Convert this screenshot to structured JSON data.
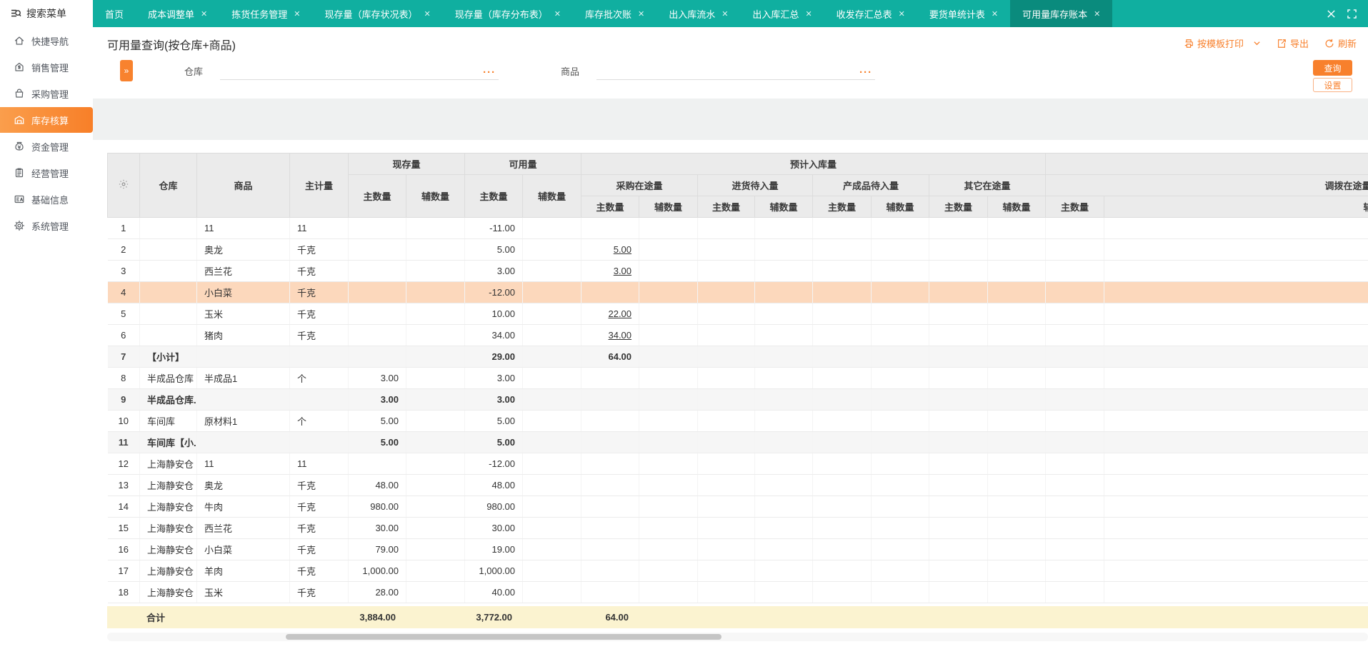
{
  "topbar": {
    "search_menu": "搜索菜单",
    "tabs": [
      {
        "label": "首页",
        "closable": false,
        "active": false
      },
      {
        "label": "成本调整单",
        "closable": true,
        "active": false
      },
      {
        "label": "拣货任务管理",
        "closable": true,
        "active": false
      },
      {
        "label": "现存量（库存状况表）",
        "closable": true,
        "active": false
      },
      {
        "label": "现存量（库存分布表）",
        "closable": true,
        "active": false
      },
      {
        "label": "库存批次账",
        "closable": true,
        "active": false
      },
      {
        "label": "出入库流水",
        "closable": true,
        "active": false
      },
      {
        "label": "出入库汇总",
        "closable": true,
        "active": false
      },
      {
        "label": "收发存汇总表",
        "closable": true,
        "active": false
      },
      {
        "label": "要货单统计表",
        "closable": true,
        "active": false
      },
      {
        "label": "可用量库存账本",
        "closable": true,
        "active": true
      }
    ]
  },
  "sidebar": {
    "items": [
      {
        "label": "快捷导航",
        "icon": "home-icon",
        "active": false
      },
      {
        "label": "销售管理",
        "icon": "sale-icon",
        "active": false
      },
      {
        "label": "采购管理",
        "icon": "purchase-bag-icon",
        "active": false
      },
      {
        "label": "库存核算",
        "icon": "warehouse-icon",
        "active": true
      },
      {
        "label": "资金管理",
        "icon": "money-bag-icon",
        "active": false
      },
      {
        "label": "经营管理",
        "icon": "clipboard-icon",
        "active": false
      },
      {
        "label": "基础信息",
        "icon": "id-card-icon",
        "active": false
      },
      {
        "label": "系统管理",
        "icon": "system-gear-icon",
        "active": false
      }
    ]
  },
  "page": {
    "title": "可用量查询(按仓库+商品)"
  },
  "toolbar": {
    "print": "按模板打印",
    "export": "导出",
    "refresh": "刷新"
  },
  "filters": {
    "warehouse_label": "仓库",
    "product_label": "商品",
    "warehouse_value": "",
    "product_value": "",
    "ellipsis": "···",
    "query": "查询",
    "settings": "设置"
  },
  "table": {
    "headers": {
      "warehouse": "仓库",
      "product": "商品",
      "unit": "主计量",
      "onhand": "现存量",
      "available": "可用量",
      "expected": "预计入库量",
      "purchase_transit": "采购在途量",
      "incoming_pending": "进货待入量",
      "finished_pending": "产成品待入量",
      "other_transit": "其它在途量",
      "transfer_transit": "调拨在途量",
      "main_qty": "主数量",
      "aux_qty": "辅数量"
    },
    "rows": [
      {
        "no": "1",
        "warehouse": "",
        "product": "11",
        "unit": "11",
        "onhand": "",
        "avail": "-11.00",
        "avail_neg": true,
        "purchase": "",
        "purchase_link": false,
        "style": "normal"
      },
      {
        "no": "2",
        "warehouse": "",
        "product": "奥龙",
        "unit": "千克",
        "onhand": "",
        "avail": "5.00",
        "avail_neg": false,
        "purchase": "5.00",
        "purchase_link": true,
        "style": "normal"
      },
      {
        "no": "3",
        "warehouse": "",
        "product": "西兰花",
        "unit": "千克",
        "onhand": "",
        "avail": "3.00",
        "avail_neg": false,
        "purchase": "3.00",
        "purchase_link": true,
        "style": "normal"
      },
      {
        "no": "4",
        "warehouse": "",
        "product": "小白菜",
        "unit": "千克",
        "onhand": "",
        "avail": "-12.00",
        "avail_neg": true,
        "purchase": "",
        "purchase_link": false,
        "style": "highlight"
      },
      {
        "no": "5",
        "warehouse": "",
        "product": "玉米",
        "unit": "千克",
        "onhand": "",
        "avail": "10.00",
        "avail_neg": false,
        "purchase": "22.00",
        "purchase_link": true,
        "style": "normal"
      },
      {
        "no": "6",
        "warehouse": "",
        "product": "猪肉",
        "unit": "千克",
        "onhand": "",
        "avail": "34.00",
        "avail_neg": false,
        "purchase": "34.00",
        "purchase_link": true,
        "style": "normal"
      },
      {
        "no": "7",
        "warehouse": "【小计】",
        "product": "",
        "unit": "",
        "onhand": "",
        "avail": "29.00",
        "avail_neg": false,
        "purchase": "64.00",
        "purchase_link": false,
        "style": "subtotal"
      },
      {
        "no": "8",
        "warehouse": "半成品仓库",
        "product": "半成品1",
        "unit": "个",
        "onhand": "3.00",
        "avail": "3.00",
        "avail_neg": false,
        "purchase": "",
        "purchase_link": false,
        "style": "normal"
      },
      {
        "no": "9",
        "warehouse": "半成品仓库...",
        "product": "",
        "unit": "",
        "onhand": "3.00",
        "avail": "3.00",
        "avail_neg": false,
        "purchase": "",
        "purchase_link": false,
        "style": "subtotal"
      },
      {
        "no": "10",
        "warehouse": "车间库",
        "product": "原材料1",
        "unit": "个",
        "onhand": "5.00",
        "avail": "5.00",
        "avail_neg": false,
        "purchase": "",
        "purchase_link": false,
        "style": "normal"
      },
      {
        "no": "11",
        "warehouse": "车间库【小...",
        "product": "",
        "unit": "",
        "onhand": "5.00",
        "avail": "5.00",
        "avail_neg": false,
        "purchase": "",
        "purchase_link": false,
        "style": "subtotal"
      },
      {
        "no": "12",
        "warehouse": "上海静安仓",
        "product": "11",
        "unit": "11",
        "onhand": "",
        "avail": "-12.00",
        "avail_neg": true,
        "purchase": "",
        "purchase_link": false,
        "style": "normal"
      },
      {
        "no": "13",
        "warehouse": "上海静安仓",
        "product": "奥龙",
        "unit": "千克",
        "onhand": "48.00",
        "avail": "48.00",
        "avail_neg": false,
        "purchase": "",
        "purchase_link": false,
        "style": "normal"
      },
      {
        "no": "14",
        "warehouse": "上海静安仓",
        "product": "牛肉",
        "unit": "千克",
        "onhand": "980.00",
        "avail": "980.00",
        "avail_neg": false,
        "purchase": "",
        "purchase_link": false,
        "style": "normal"
      },
      {
        "no": "15",
        "warehouse": "上海静安仓",
        "product": "西兰花",
        "unit": "千克",
        "onhand": "30.00",
        "avail": "30.00",
        "avail_neg": false,
        "purchase": "",
        "purchase_link": false,
        "style": "normal"
      },
      {
        "no": "16",
        "warehouse": "上海静安仓",
        "product": "小白菜",
        "unit": "千克",
        "onhand": "79.00",
        "avail": "19.00",
        "avail_neg": false,
        "purchase": "",
        "purchase_link": false,
        "style": "normal"
      },
      {
        "no": "17",
        "warehouse": "上海静安仓",
        "product": "羊肉",
        "unit": "千克",
        "onhand": "1,000.00",
        "avail": "1,000.00",
        "avail_neg": false,
        "purchase": "",
        "purchase_link": false,
        "style": "normal"
      },
      {
        "no": "18",
        "warehouse": "上海静安仓",
        "product": "玉米",
        "unit": "千克",
        "onhand": "28.00",
        "avail": "40.00",
        "avail_neg": true,
        "purchase": "",
        "purchase_link": false,
        "style": "normal"
      }
    ],
    "footer": {
      "label": "合计",
      "onhand": "3,884.00",
      "avail": "3,772.00",
      "purchase": "64.00"
    }
  },
  "colors": {
    "teal_bar": "#10afa0",
    "teal_active_tab": "#0a8b7d",
    "accent_orange": "#f8802c",
    "negative_red": "#f23d3d",
    "highlight_row": "#fcd8bc",
    "total_row": "#fbf3d0",
    "header_bg": "#ebebeb"
  }
}
